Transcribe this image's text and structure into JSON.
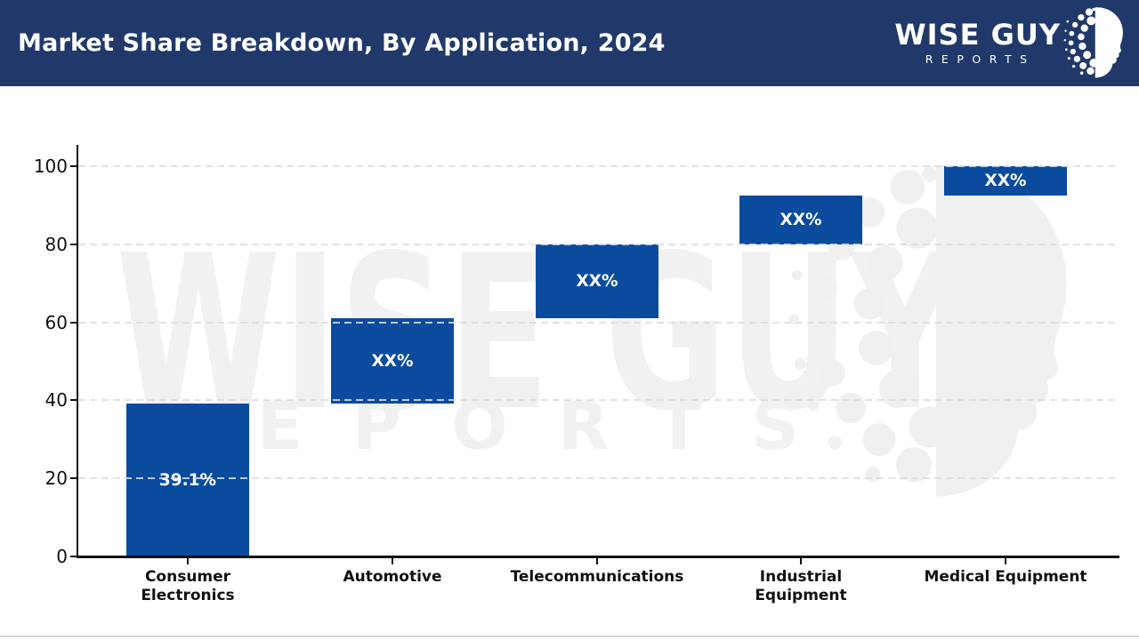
{
  "header": {
    "title": "Market Share Breakdown, By Application, 2024",
    "logo": {
      "wordmark": "WISE GUY",
      "subtitle": "REPORTS"
    }
  },
  "watermark": {
    "line1": "WISE GUY",
    "line2": "REPORTS"
  },
  "colors": {
    "header_bg": "#20396a",
    "bar": "#0a4b9e",
    "bar_label": "#ffffff",
    "grid": "#dddddd",
    "axis": "#111111",
    "watermark": "#f1f1f2",
    "bottom_rule": "#d9d9d9"
  },
  "chart_data": {
    "type": "bar",
    "subtype": "waterfall",
    "title": "Market Share Breakdown, By Application, 2024",
    "xlabel": "",
    "ylabel": "",
    "ylim": [
      0,
      105
    ],
    "yticks": [
      0,
      20,
      40,
      60,
      80,
      100
    ],
    "grid": "dashed-horizontal",
    "legend": null,
    "bar_color": "#0a4b9e",
    "bar_label_color": "#ffffff",
    "categories": [
      "Consumer Electronics",
      "Automotive",
      "Telecommunications",
      "Industrial Equipment",
      "Medical Equipment"
    ],
    "category_lines": [
      [
        "Consumer",
        "Electronics"
      ],
      [
        "Automotive"
      ],
      [
        "Telecommunications"
      ],
      [
        "Industrial",
        "Equipment"
      ],
      [
        "Medical Equipment"
      ]
    ],
    "segments": [
      {
        "category": "Consumer Electronics",
        "start": 0,
        "end": 39.1,
        "label": "39.1%"
      },
      {
        "category": "Automotive",
        "start": 39.1,
        "end": 61.0,
        "label": "XX%"
      },
      {
        "category": "Telecommunications",
        "start": 61.0,
        "end": 80.0,
        "label": "XX%"
      },
      {
        "category": "Industrial Equipment",
        "start": 80.0,
        "end": 92.4,
        "label": "XX%"
      },
      {
        "category": "Medical Equipment",
        "start": 92.4,
        "end": 100.0,
        "label": "XX%"
      }
    ]
  }
}
